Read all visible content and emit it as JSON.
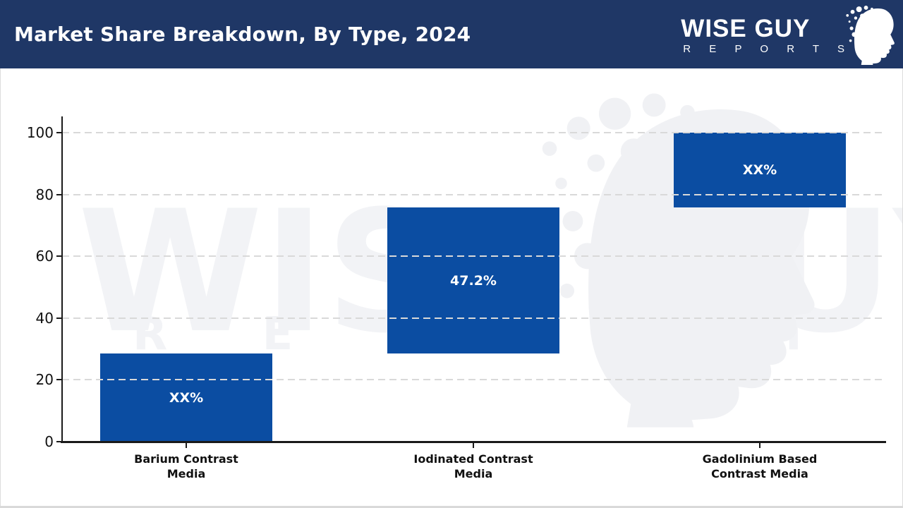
{
  "header": {
    "title": "Market Share Breakdown, By Type, 2024",
    "logo": {
      "name": "WISE GUY",
      "subname": "REPORTS",
      "subname_spaced": "R E P O R T S"
    }
  },
  "watermark": {
    "line1": "WISE GUY",
    "line2": "R E P O R T S"
  },
  "chart_data": {
    "type": "bar",
    "variant": "stacked_breakdown_waterfall",
    "title": "Market Share Breakdown, By Type, 2024",
    "categories": [
      {
        "line1": "Barium Contrast",
        "line2": "Media"
      },
      {
        "line1": "Iodinated Contrast",
        "line2": "Media"
      },
      {
        "line1": "Gadolinium Based",
        "line2": "Contrast Media"
      }
    ],
    "bars": [
      {
        "category": "Barium Contrast Media",
        "start": 0,
        "end": 28.6,
        "value": 28.6,
        "label": "XX%"
      },
      {
        "category": "Iodinated Contrast Media",
        "start": 28.6,
        "end": 75.8,
        "value": 47.2,
        "label": "47.2%"
      },
      {
        "category": "Gadolinium Based Contrast Media",
        "start": 75.8,
        "end": 100,
        "value": 24.2,
        "label": "XX%"
      }
    ],
    "y_ticks": [
      0,
      20,
      40,
      60,
      80,
      100
    ],
    "ylim": [
      0,
      105.3
    ],
    "xlabel": "",
    "ylabel": "",
    "legend": "none",
    "grid": "horizontal-dashed",
    "bar_color": "#0b4da2",
    "bar_label_color": "#ffffff"
  },
  "colors": {
    "header_bg": "#1f3766",
    "bar": "#0b4da2",
    "grid": "#d9d9d9",
    "axis": "#1a1a1a",
    "watermark": "#f1f2f5"
  }
}
